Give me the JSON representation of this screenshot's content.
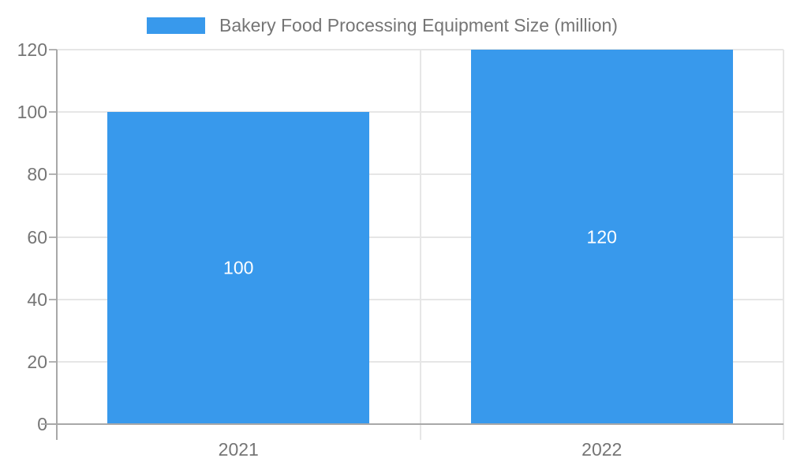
{
  "legend": {
    "label": "Bakery Food Processing Equipment Size (million)"
  },
  "chart_data": {
    "type": "bar",
    "title": "",
    "categories": [
      "2021",
      "2022"
    ],
    "series": [
      {
        "name": "Bakery Food Processing Equipment Size (million)",
        "values": [
          100,
          120
        ]
      }
    ],
    "bar_value_labels": [
      "100",
      "120"
    ],
    "xlabel": "",
    "ylabel": "",
    "ylim": [
      0,
      120
    ],
    "yticks": [
      0,
      20,
      40,
      60,
      80,
      100,
      120
    ],
    "grid": true,
    "legend_position": "top-center",
    "bar_width_ratio": 0.72,
    "colors": {
      "bar": "#3899ec",
      "grid": "#e6e6e6",
      "axis": "#a8a8a8",
      "tick_mark": "#b3b3b3",
      "tick_text": "#757575",
      "legend_text": "#757575",
      "value_label_text": "#ffffff",
      "background": "#ffffff"
    }
  }
}
